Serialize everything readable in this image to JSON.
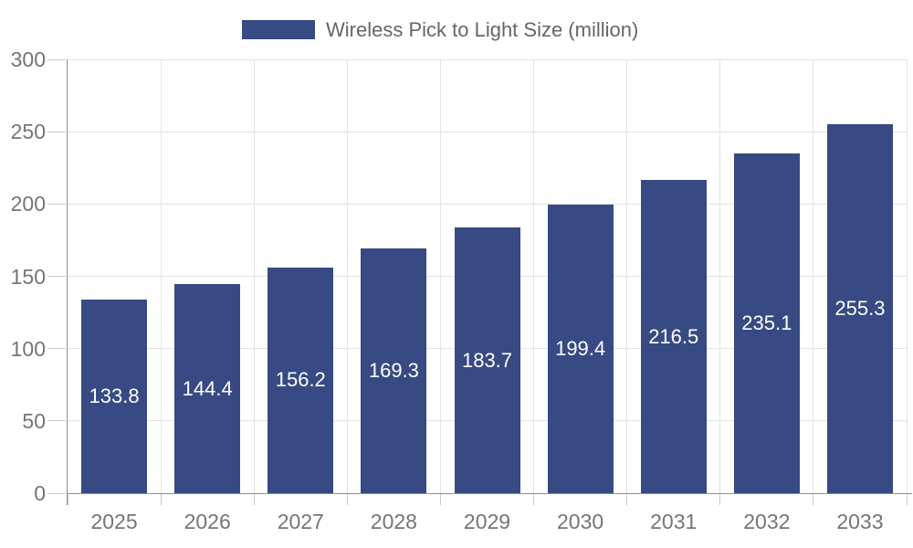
{
  "chart_data": {
    "type": "bar",
    "title": "Wireless Pick to Light Size (million)",
    "series_name": "Wireless Pick to Light Size (million)",
    "categories": [
      "2025",
      "2026",
      "2027",
      "2028",
      "2029",
      "2030",
      "2031",
      "2032",
      "2033"
    ],
    "values": [
      133.8,
      144.4,
      156.2,
      169.3,
      183.7,
      199.4,
      216.5,
      235.1,
      255.3
    ],
    "value_labels": [
      "133.8",
      "144.4",
      "156.2",
      "169.3",
      "183.7",
      "199.4",
      "216.5",
      "235.1",
      "255.3"
    ],
    "xlabel": "",
    "ylabel": "",
    "ylim": [
      0,
      300
    ],
    "yticks": [
      0,
      50,
      100,
      150,
      200,
      250,
      300
    ],
    "grid": true,
    "legend_position": "top-center",
    "colors": {
      "bar": "#374a83",
      "bar_value_text": "#ffffff",
      "grid_line": "#e3e3e8",
      "axis_line": "#8f9094",
      "tick_mark": "#c9c9ce",
      "axis_label_text": "#757575",
      "legend_text": "#666666",
      "background": "#ffffff"
    }
  }
}
